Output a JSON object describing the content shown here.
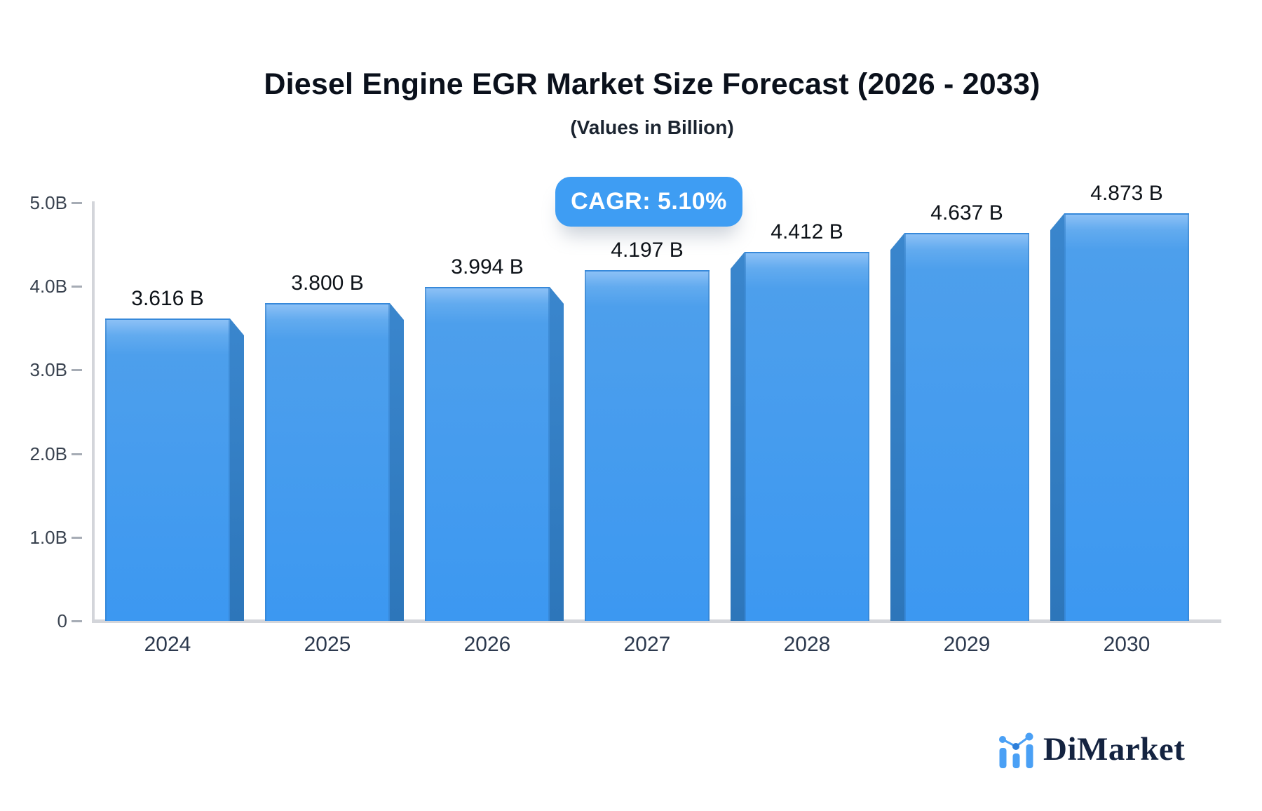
{
  "title": "Diesel Engine EGR Market Size Forecast (2026 - 2033)",
  "subtitle": "(Values in Billion)",
  "badge": {
    "label": "CAGR: 5.10%"
  },
  "chart_data": {
    "type": "bar",
    "title": "Diesel Engine EGR Market Size Forecast (2026 - 2033)",
    "subtitle": "(Values in Billion)",
    "categories": [
      "2024",
      "2025",
      "2026",
      "2027",
      "2028",
      "2029",
      "2030"
    ],
    "values": [
      3.616,
      3.8,
      3.994,
      4.197,
      4.412,
      4.637,
      4.873
    ],
    "value_labels": [
      "3.616 B",
      "3.800 B",
      "3.994 B",
      "4.197 B",
      "4.412 B",
      "4.637 B",
      "4.873 B"
    ],
    "cagr_annotation": "CAGR: 5.10%",
    "y_ticks": [
      {
        "label": "5.0B",
        "value": 5
      },
      {
        "label": "4.0B",
        "value": 4
      },
      {
        "label": "3.0B",
        "value": 3
      },
      {
        "label": "2.0B",
        "value": 2
      },
      {
        "label": "1.0B",
        "value": 1
      },
      {
        "label": "0",
        "value": 0
      }
    ],
    "ylim": [
      0,
      5
    ],
    "xlabel": "",
    "ylabel": "",
    "grid": false,
    "legend": false
  },
  "logo": {
    "text": "DiMarket",
    "icon": "mini-bar-chart-icon"
  },
  "colors": {
    "background": "#ffffff",
    "bar_face_top": "#8cc1f6",
    "bar_face_mid": "#4d9fec",
    "bar_face_bottom": "#3c98f1",
    "bar_border": "#337ec7",
    "bar_side_top": "#3a86cd",
    "bar_side_bottom": "#2d76ba",
    "badge_bg": "#3e9df3",
    "badge_text": "#ffffff",
    "title_text": "#0a101b",
    "axis_text": "#39424f",
    "x_label_text": "#2c394e",
    "value_label_text": "#0e1319",
    "axis_line": "#d3d5da",
    "tick_dash": "#a6acb5",
    "logo_text": "#142340",
    "logo_icon_blue": "#4aa0f5",
    "logo_icon_dark_dot": "#2e7fd9"
  }
}
